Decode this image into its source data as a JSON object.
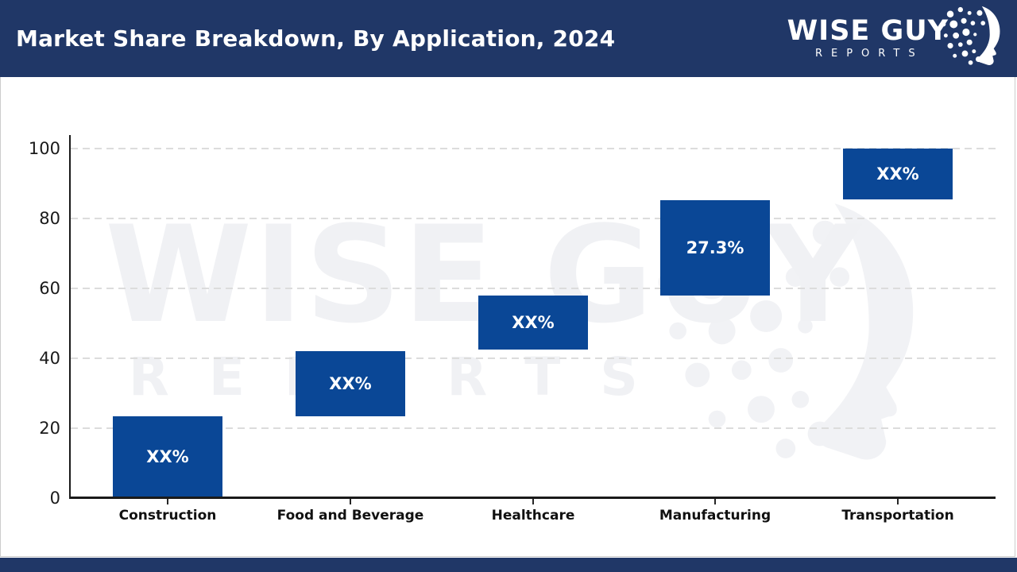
{
  "header": {
    "title": "Market Share Breakdown, By Application, 2024",
    "logo_line1": "WISE GUY",
    "logo_line2": "REPORTS",
    "bg_color": "#203767",
    "text_color": "#ffffff"
  },
  "watermark": {
    "line1": "WISE GUY",
    "line2": "REPORTS"
  },
  "chart_data": {
    "type": "bar",
    "variant": "floating-waterfall",
    "title": "Market Share Breakdown, By Application, 2024",
    "categories": [
      "Construction",
      "Food and Beverage",
      "Healthcare",
      "Manufacturing",
      "Transportation"
    ],
    "bars": [
      {
        "category": "Construction",
        "start": 0,
        "end": 23.5,
        "label": "XX%"
      },
      {
        "category": "Food and Beverage",
        "start": 23.5,
        "end": 42.0,
        "label": "XX%"
      },
      {
        "category": "Healthcare",
        "start": 42.5,
        "end": 58.0,
        "label": "XX%"
      },
      {
        "category": "Manufacturing",
        "start": 58.0,
        "end": 85.3,
        "label": "27.3%"
      },
      {
        "category": "Transportation",
        "start": 85.5,
        "end": 100.0,
        "label": "XX%"
      }
    ],
    "ylim": [
      0,
      100
    ],
    "yticks": [
      0,
      20,
      40,
      60,
      80,
      100
    ],
    "xlabel": "",
    "ylabel": "",
    "bar_color": "#0a4796",
    "bar_label_color": "#ffffff",
    "grid": "horizontal-dashed",
    "legend": "none"
  },
  "footer": {
    "bg_color": "#203767"
  }
}
